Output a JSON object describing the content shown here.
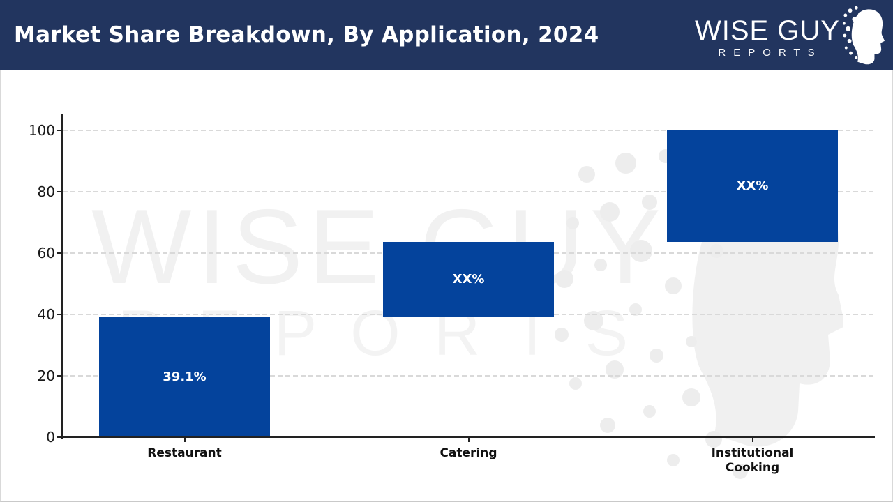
{
  "header": {
    "title": "Market Share Breakdown, By Application, 2024",
    "logo": {
      "wordmark": "WISE GUY",
      "subtext": "REPORTS"
    }
  },
  "watermark": {
    "line1": "WISE GUY",
    "line2": "REPORTS"
  },
  "chart_data": {
    "type": "bar",
    "subtype": "floating-segment-waterfall",
    "title": "Market Share Breakdown, By Application, 2024",
    "categories": [
      "Restaurant",
      "Catering",
      "Institutional Cooking"
    ],
    "bars": [
      {
        "category": "Restaurant",
        "start": 0,
        "end": 39.1,
        "height": 39.1,
        "label": "39.1%"
      },
      {
        "category": "Catering",
        "start": 39.1,
        "end": 63.6,
        "height": 24.5,
        "label": "XX%"
      },
      {
        "category": "Institutional Cooking",
        "start": 63.6,
        "end": 100,
        "height": 36.4,
        "label": "XX%"
      }
    ],
    "y_ticks": [
      0,
      20,
      40,
      60,
      80,
      100
    ],
    "ylim": [
      0,
      105.3
    ],
    "xlabel": "",
    "ylabel": "",
    "unit": "%",
    "grid": "horizontal-dashed",
    "legend": "none",
    "bar_color": "#04439C"
  },
  "colors": {
    "header_bg": "#22355F",
    "bar": "#04439C",
    "bar_label": "#ffffff",
    "axis": "#222222",
    "tick_label": "#1a1a1a",
    "gridline": "#d9d9d9",
    "watermark": "#f1f1f1",
    "page_border": "#cccccc"
  }
}
